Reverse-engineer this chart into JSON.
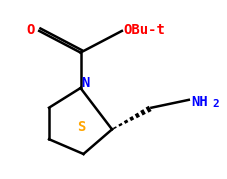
{
  "bg_color": "#ffffff",
  "line_color": "#000000",
  "line_width": 1.8,
  "atom_colors": {
    "O": "#ff0000",
    "N": "#0000ff",
    "S": "#ffa500",
    "NH2": "#0000ff"
  },
  "font_size_atoms": 10,
  "figsize": [
    2.27,
    1.79
  ],
  "dpi": 100,
  "obut_text": "OBu-t",
  "o_text": "O",
  "n_text": "N",
  "s_text": "S",
  "nh2_text": "NH",
  "two_text": "2"
}
